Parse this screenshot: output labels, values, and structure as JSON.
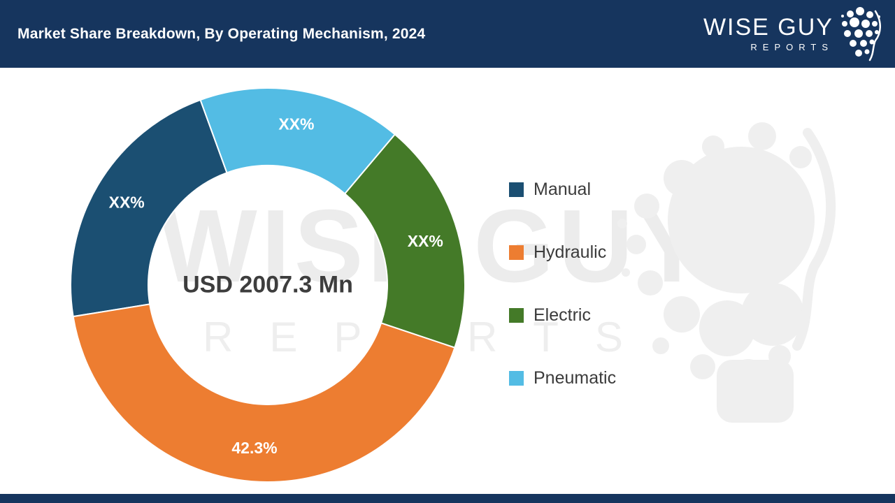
{
  "theme": {
    "header_bg": "#16355e",
    "footer_bg": "#16355e",
    "header_text": "#ffffff"
  },
  "header": {
    "title": "Market Share Breakdown, By Operating Mechanism, 2024",
    "logo": {
      "line1": "WISE GUY",
      "line2": "REPORTS"
    }
  },
  "watermark": {
    "line1": "WISE GUY",
    "line2": "REPORTS"
  },
  "chart_data": {
    "type": "pie",
    "subtype": "donut",
    "title": "Market Share Breakdown, By Operating Mechanism, 2024",
    "center_label": "USD 2007.3 Mn",
    "total_value": "USD 2007.3 Mn",
    "start_angle_deg": 110,
    "direction": "counterclockwise",
    "legend_position": "right",
    "categories": [
      "Manual",
      "Hydraulic",
      "Electric",
      "Pneumatic"
    ],
    "values_pct": [
      22.0,
      42.3,
      19.0,
      16.7
    ],
    "segments": [
      {
        "name": "Manual",
        "display_label": "XX%",
        "value_pct": 22.0,
        "color": "#1b4f72"
      },
      {
        "name": "Hydraulic",
        "display_label": "42.3%",
        "value_pct": 42.3,
        "color": "#ed7d31"
      },
      {
        "name": "Electric",
        "display_label": "XX%",
        "value_pct": 19.0,
        "color": "#447a28"
      },
      {
        "name": "Pneumatic",
        "display_label": "XX%",
        "value_pct": 16.7,
        "color": "#53bce4"
      }
    ]
  }
}
